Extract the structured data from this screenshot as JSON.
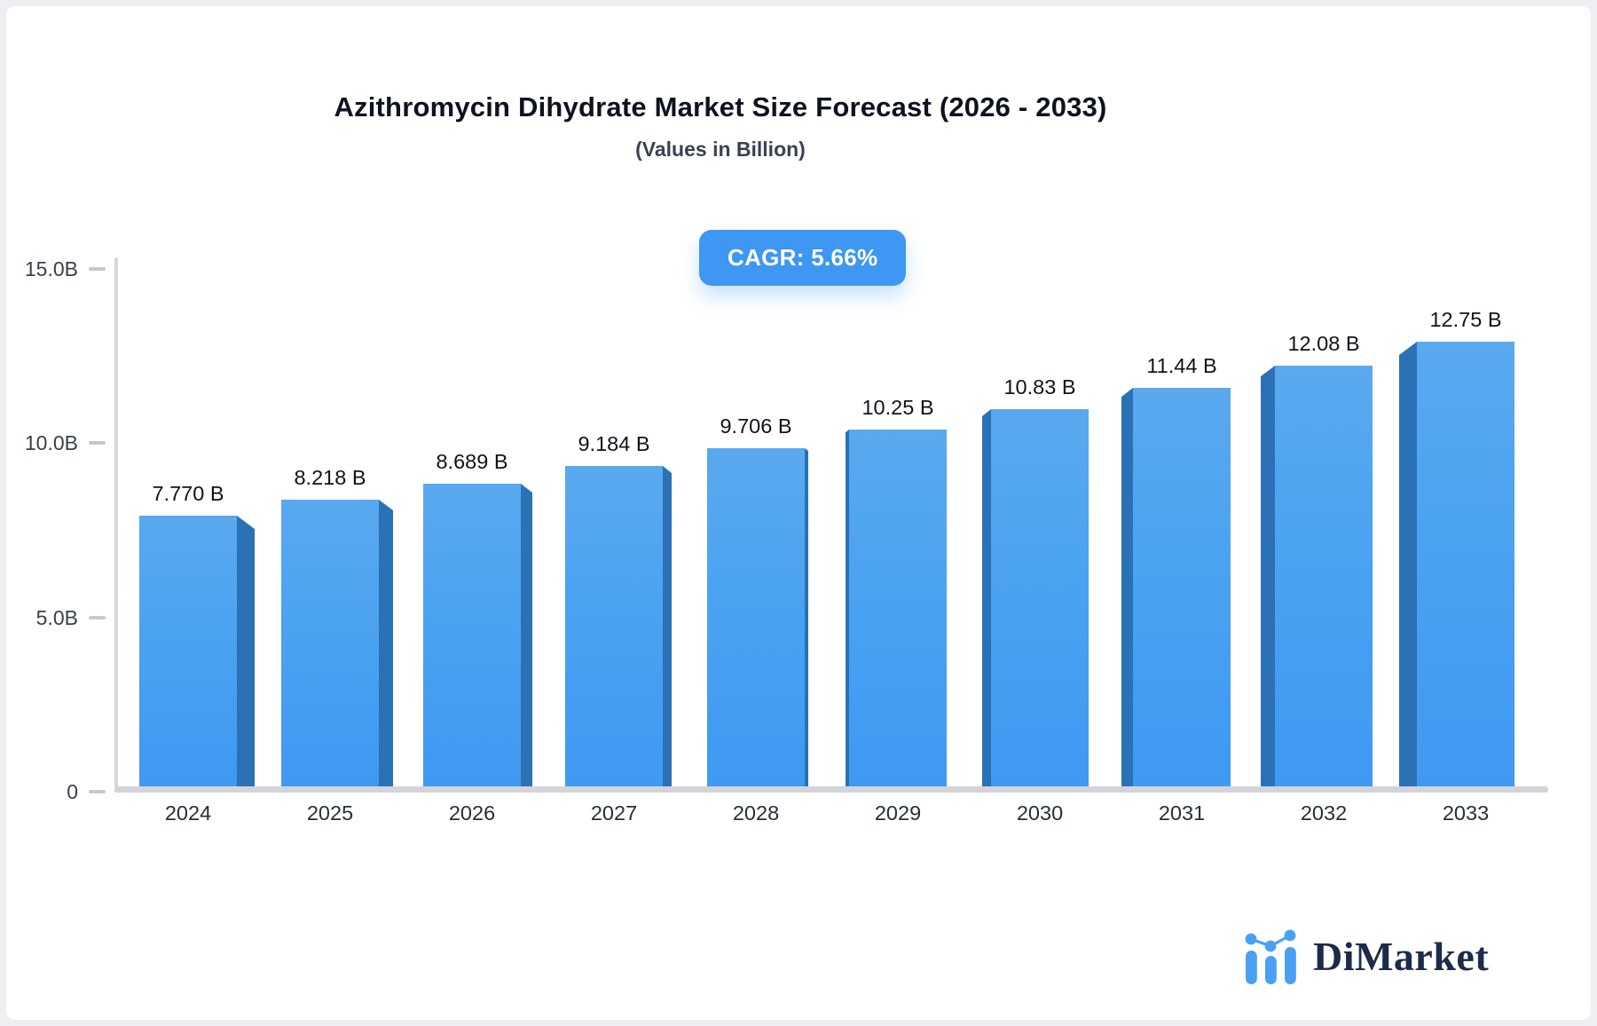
{
  "title": "Azithromycin Dihydrate Market Size Forecast (2026 - 2033)",
  "subtitle": "(Values in Billion)",
  "badge": {
    "label": "CAGR: 5.66%",
    "color": "#3d97f3"
  },
  "colors": {
    "bar_face_top": "#5aa9ef",
    "bar_face_bottom": "#3f99f2",
    "bar_side": "#2b71b6",
    "axis": "#d3d4d9",
    "label_text": "#10131c"
  },
  "chart_data": {
    "type": "bar",
    "title": "Azithromycin Dihydrate Market Size Forecast (2026 - 2033)",
    "subtitle": "(Values in Billion)",
    "categories": [
      "2024",
      "2025",
      "2026",
      "2027",
      "2028",
      "2029",
      "2030",
      "2031",
      "2032",
      "2033"
    ],
    "values": [
      7.77,
      8.218,
      8.689,
      9.184,
      9.706,
      10.25,
      10.83,
      11.44,
      12.08,
      12.75
    ],
    "value_labels": [
      "7.770 B",
      "8.218 B",
      "8.689 B",
      "9.184 B",
      "9.706 B",
      "10.25 B",
      "10.83 B",
      "11.44 B",
      "12.08 B",
      "12.75 B"
    ],
    "xlabel": "",
    "ylabel": "",
    "y_ticks": [
      {
        "value": 15,
        "label": "15.0B"
      },
      {
        "value": 10,
        "label": "10.0B"
      },
      {
        "value": 5,
        "label": "5.0B"
      },
      {
        "value": 0,
        "label": "0"
      }
    ],
    "ylim": [
      0,
      15
    ],
    "grid": false,
    "legend": false,
    "style": "3d-extruded-bars, perspective toward center"
  },
  "logo": {
    "text": "DiMarket",
    "icon": "mini-bar-chart-icon"
  }
}
